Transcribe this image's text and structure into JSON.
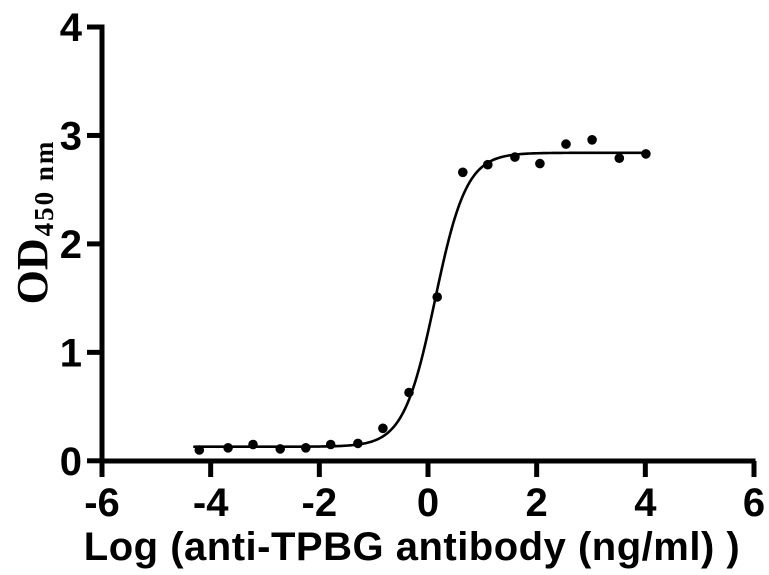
{
  "page": {
    "background": "#ffffff"
  },
  "chart_data": {
    "type": "scatter",
    "subtype": "sigmoidal dose-response binding curve (ELISA) with fitted 4PL line",
    "title": "",
    "xlabel": "Log （anti-TPBG antibody（ng/ml） ）",
    "ylabel": "OD",
    "ylabel_subscript": "450 nm",
    "xlim": [
      -6,
      6
    ],
    "ylim": [
      0,
      4
    ],
    "xticks": [
      "-6",
      "-4",
      "-2",
      "0",
      "2",
      "4",
      "6"
    ],
    "yticks": [
      "0",
      "1",
      "2",
      "3",
      "4"
    ],
    "grid": false,
    "legend": "none",
    "marker": "filled-circle",
    "marker_radius_px": 4.8,
    "colors": {
      "ink": "#000000",
      "background": "#ffffff"
    },
    "points": [
      {
        "x": -4.21,
        "y": 0.1
      },
      {
        "x": -3.68,
        "y": 0.12
      },
      {
        "x": -3.22,
        "y": 0.15
      },
      {
        "x": -2.72,
        "y": 0.11
      },
      {
        "x": -2.25,
        "y": 0.12
      },
      {
        "x": -1.79,
        "y": 0.15
      },
      {
        "x": -1.29,
        "y": 0.16
      },
      {
        "x": -0.83,
        "y": 0.3
      },
      {
        "x": -0.35,
        "y": 0.63
      },
      {
        "x": 0.17,
        "y": 1.51
      },
      {
        "x": 0.64,
        "y": 2.66
      },
      {
        "x": 1.1,
        "y": 2.73
      },
      {
        "x": 1.6,
        "y": 2.8
      },
      {
        "x": 2.06,
        "y": 2.74
      },
      {
        "x": 2.54,
        "y": 2.92
      },
      {
        "x": 3.02,
        "y": 2.96
      },
      {
        "x": 3.52,
        "y": 2.79
      },
      {
        "x": 4.01,
        "y": 2.83
      }
    ],
    "fit_curve": {
      "model": "four-parameter logistic (sigmoidal dose-response)",
      "bottom": 0.13,
      "top": 2.84,
      "log_ec50": 0.13,
      "hill_slope": 1.5,
      "x_start": -4.3,
      "x_end": 4.03,
      "color": "#000000"
    }
  }
}
